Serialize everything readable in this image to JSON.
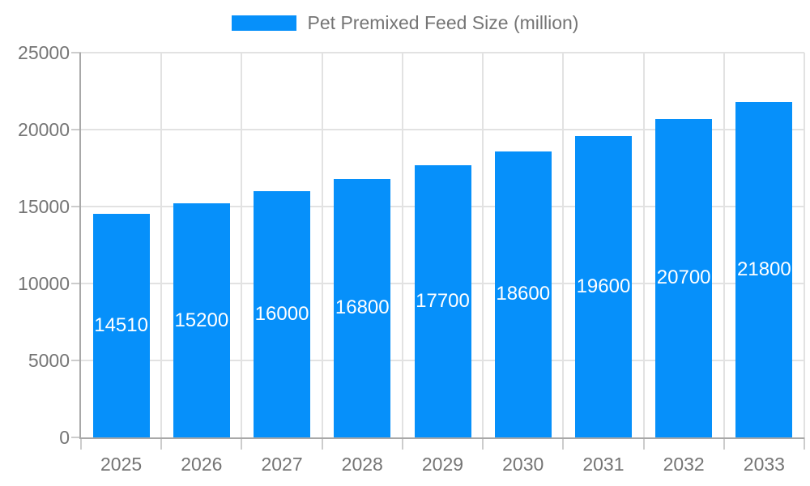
{
  "chart_data": {
    "type": "bar",
    "title": "Pet Premixed Feed Size (million)",
    "legend": [
      {
        "label": "Pet Premixed Feed Size (million)",
        "color": "#0690FA"
      }
    ],
    "legend_position": "top-center",
    "categories": [
      "2025",
      "2026",
      "2027",
      "2028",
      "2029",
      "2030",
      "2031",
      "2032",
      "2033"
    ],
    "values": [
      14510,
      15200,
      16000,
      16800,
      17700,
      18600,
      19600,
      20700,
      21800
    ],
    "value_labels": [
      "14510",
      "15200",
      "16000",
      "16800",
      "17700",
      "18600",
      "19600",
      "20700",
      "21800"
    ],
    "xlabel": "",
    "ylabel": "",
    "ylim": [
      0,
      25000
    ],
    "ytick_step": 5000,
    "ytick_labels": [
      "0",
      "5000",
      "10000",
      "15000",
      "20000",
      "25000"
    ],
    "grid": true,
    "colors": {
      "bar": "#0690FA",
      "bar_value_text": "#FFFFFF",
      "axis_text": "#757575",
      "legend_text": "#757575",
      "axis_line": "#A8A8A8",
      "gridline": "#E2E2E2",
      "tick": "#CCCCCC",
      "background": "#FFFFFF"
    }
  }
}
